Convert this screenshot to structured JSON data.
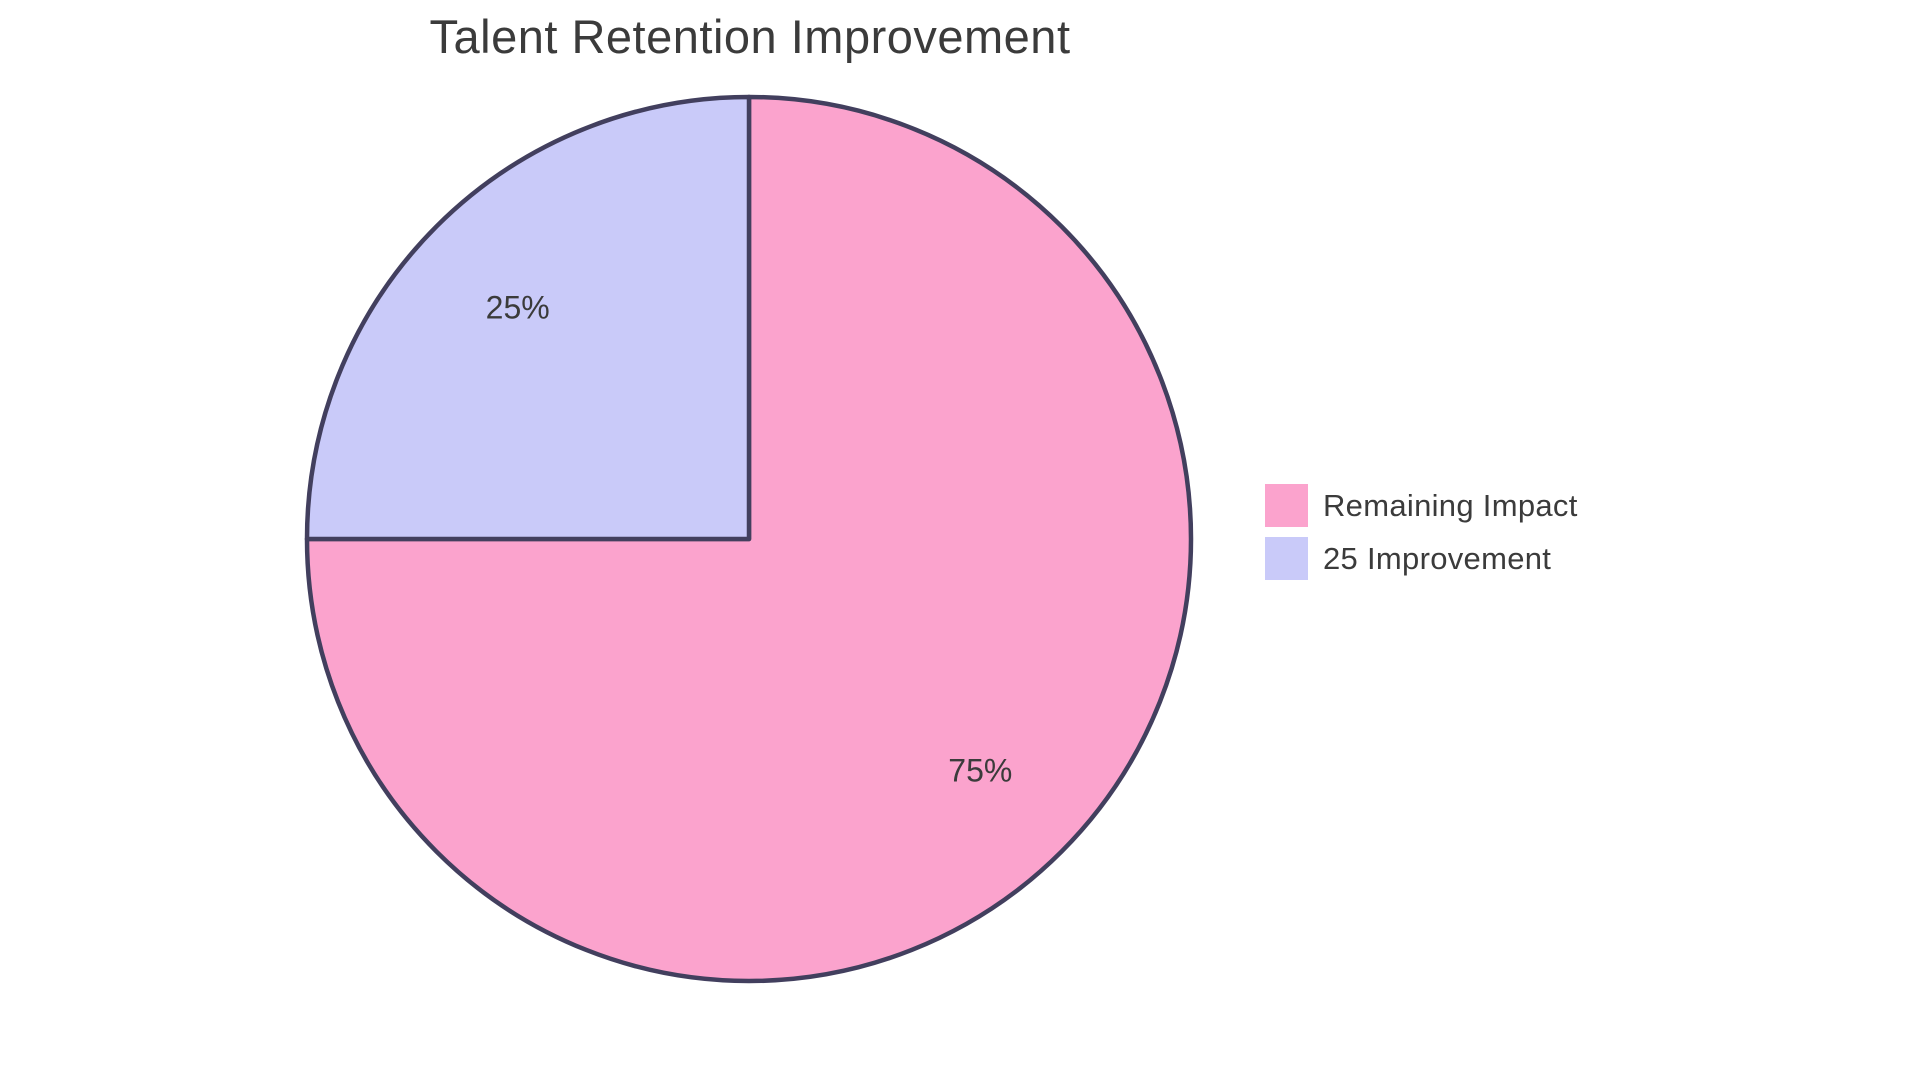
{
  "chart_data": {
    "type": "pie",
    "title": "Talent Retention Improvement",
    "labels": [
      "Remaining Impact",
      "25 Improvement"
    ],
    "values": [
      75,
      25
    ],
    "slice_labels": [
      "75%",
      "25%"
    ],
    "colors": [
      "#FBA3CD",
      "#C9CAF9"
    ],
    "outline_color": "#423F5E",
    "text_color": "#3B3B3B",
    "background_color": "#FFFFFF",
    "legend_position": "right",
    "start_angle": "top",
    "direction": "clockwise"
  }
}
